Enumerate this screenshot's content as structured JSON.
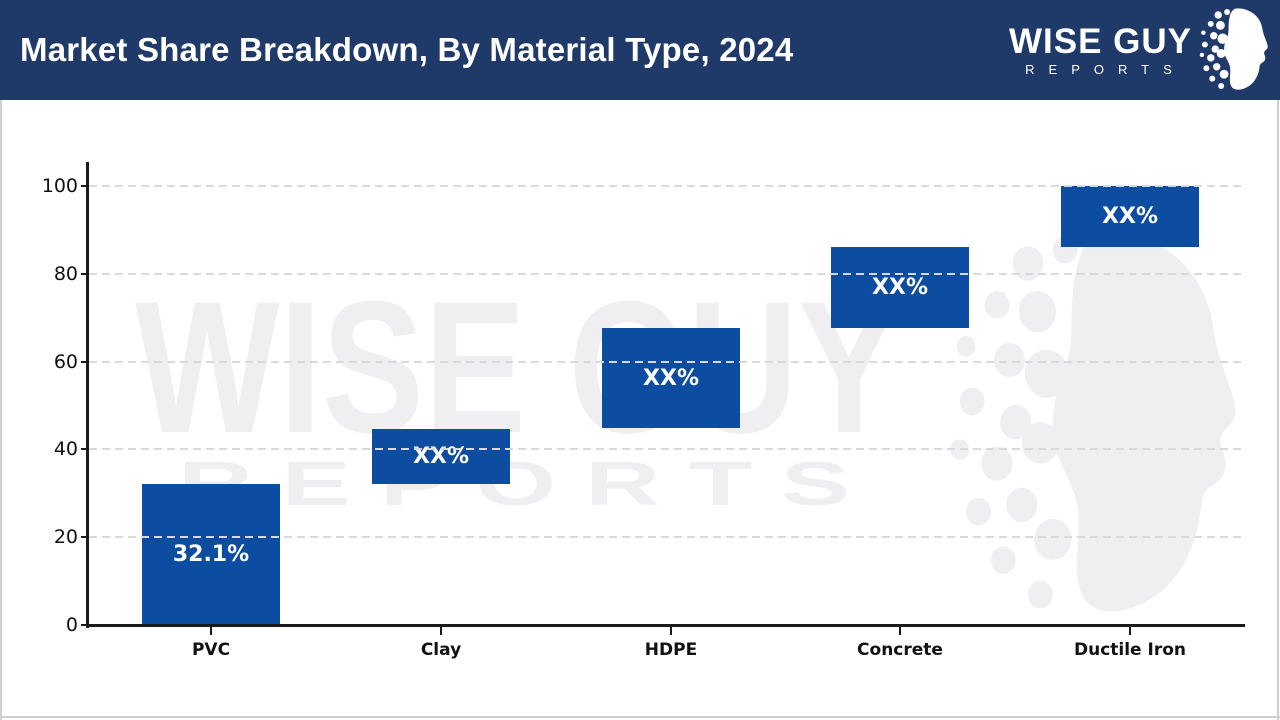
{
  "header": {
    "title": "Market Share Breakdown, By Material Type, 2024",
    "logo": {
      "line1": "WISE GUY",
      "line2": "REPORTS"
    }
  },
  "watermark": {
    "line1": "WISE GUY",
    "line2": "R E P O R T S"
  },
  "chart_data": {
    "type": "waterfall",
    "title": "Market Share Breakdown, By Material Type, 2024",
    "categories": [
      "PVC",
      "Clay",
      "HDPE",
      "Concrete",
      "Ductile Iron"
    ],
    "series": [
      {
        "category": "PVC",
        "base": 0,
        "top": 32.1,
        "label": "32.1%"
      },
      {
        "category": "Clay",
        "base": 32.1,
        "top": 44.6,
        "label": "XX%"
      },
      {
        "category": "HDPE",
        "base": 44.8,
        "top": 67.7,
        "label": "XX%"
      },
      {
        "category": "Concrete",
        "base": 67.7,
        "top": 86.2,
        "label": "XX%"
      },
      {
        "category": "Ductile Iron",
        "base": 86.1,
        "top": 100,
        "label": "XX%"
      }
    ],
    "unit": "%",
    "yticks": [
      0,
      20,
      40,
      60,
      80,
      100
    ],
    "ylim": [
      0,
      105.5
    ],
    "xlabel": "",
    "ylabel": "",
    "grid": "horizontal-dashed-above-bars",
    "legend": "none",
    "colors": {
      "bar": "#0C4DA2",
      "header_background": "#1F3A68",
      "grid": "#D9D9D9",
      "axis": "#1A1A1A",
      "bar_label": "#FFFFFF",
      "watermark": "#EFEFF1"
    }
  }
}
